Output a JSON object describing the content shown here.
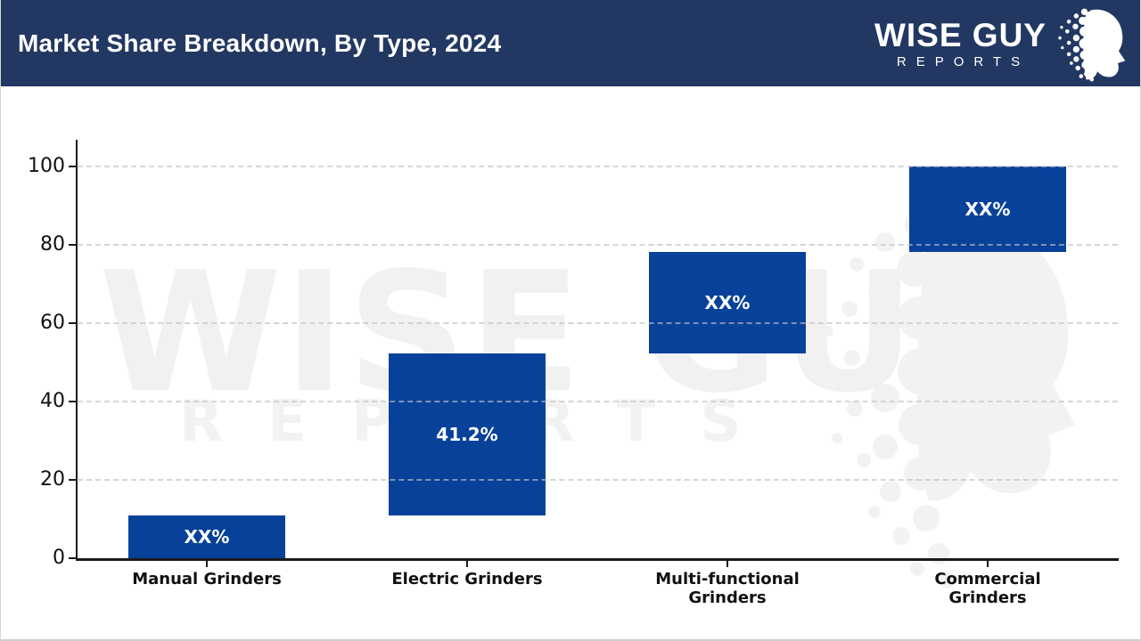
{
  "header": {
    "title": "Market Share Breakdown, By Type, 2024",
    "bg_color": "#223862",
    "brand_line1": "WISE GUY",
    "brand_line2": "REPORTS"
  },
  "watermark": {
    "line1": "WISE GUY",
    "line2": "REPORTS"
  },
  "chart_data": {
    "type": "bar",
    "subtype": "floating stacked breakdown (segments sum to 100%)",
    "title": "Market Share Breakdown, By Type, 2024",
    "categories": [
      "Manual Grinders",
      "Electric Grinders",
      "Multi-functional Grinders",
      "Commercial Grinders"
    ],
    "xtick_lines": [
      [
        "Manual Grinders"
      ],
      [
        "Electric Grinders"
      ],
      [
        "Multi-functional",
        "Grinders"
      ],
      [
        "Commercial",
        "Grinders"
      ]
    ],
    "segments": [
      {
        "category": "Manual Grinders",
        "start": 0,
        "end": 11,
        "label": "XX%"
      },
      {
        "category": "Electric Grinders",
        "start": 11,
        "end": 52.2,
        "label": "41.2%"
      },
      {
        "category": "Multi-functional Grinders",
        "start": 52.2,
        "end": 78.2,
        "label": "XX%"
      },
      {
        "category": "Commercial Grinders",
        "start": 78.2,
        "end": 100,
        "label": "XX%"
      }
    ],
    "ylim": [
      0,
      100
    ],
    "yticks": [
      0,
      20,
      40,
      60,
      80,
      100
    ],
    "grid": "horizontal dashed, drawn over bars",
    "legend": "none",
    "bar_color": "#07419a",
    "bar_label_color": "#ffffff",
    "axis_color": "#1a1a1a",
    "grid_color": "#d9d9d9"
  }
}
